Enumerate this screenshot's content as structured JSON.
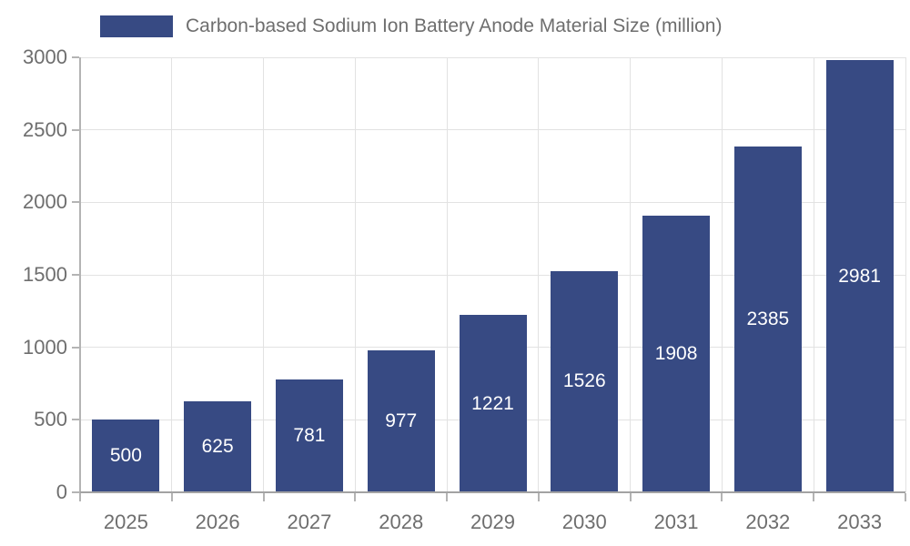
{
  "legend": {
    "series_label": "Carbon-based Sodium Ion Battery Anode Material Size (million)"
  },
  "colors": {
    "bar": "#374a83",
    "grid": "#e2e2e2",
    "axis_y": "#b4b4b4",
    "axis_x": "#a3a3a3",
    "tick_text": "#6e6e6e",
    "value_text": "#ffffff"
  },
  "chart_data": {
    "type": "bar",
    "title": "Carbon-based Sodium Ion Battery Anode Material Size (million)",
    "categories": [
      "2025",
      "2026",
      "2027",
      "2028",
      "2029",
      "2030",
      "2031",
      "2032",
      "2033"
    ],
    "values": [
      500,
      625,
      781,
      977,
      1221,
      1526,
      1908,
      2385,
      2981
    ],
    "series": [
      {
        "name": "Carbon-based Sodium Ion Battery Anode Material Size (million)",
        "values": [
          500,
          625,
          781,
          977,
          1221,
          1526,
          1908,
          2385,
          2981
        ]
      }
    ],
    "xlabel": "",
    "ylabel": "",
    "ylim": [
      0,
      3000
    ],
    "yticks": [
      0,
      500,
      1000,
      1500,
      2000,
      2500,
      3000
    ],
    "grid": true,
    "legend_position": "top-left",
    "value_labels": "inside-center"
  }
}
